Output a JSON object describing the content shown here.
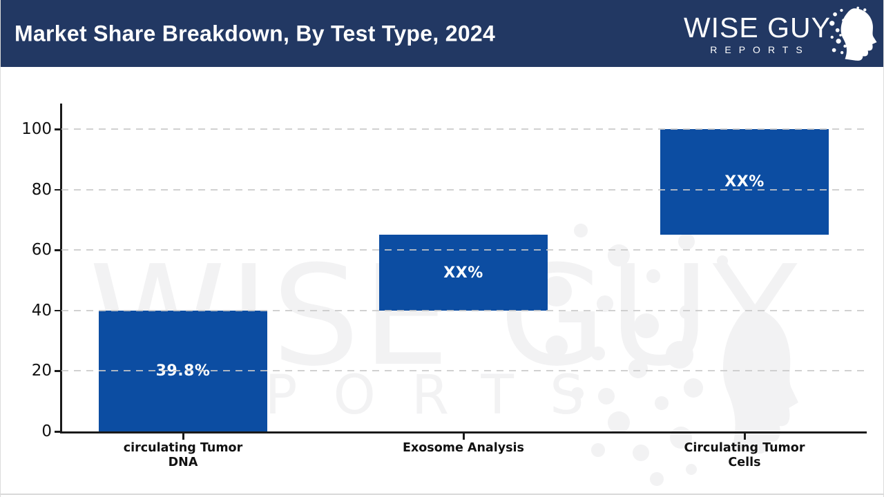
{
  "header": {
    "title": "Market Share Breakdown, By Test Type, 2024",
    "logo": {
      "wordmark": "WISE GUY",
      "subtext": "REPORTS"
    }
  },
  "watermark": {
    "wordmark": "WISE GUY",
    "subtext": "REPORTS"
  },
  "chart_data": {
    "type": "bar",
    "subtype": "floating-waterfall",
    "title": "Market Share Breakdown, By Test Type, 2024",
    "categories": [
      "circulating Tumor DNA",
      "Exosome Analysis",
      "Circulating Tumor Cells"
    ],
    "category_lines": [
      [
        "circulating Tumor",
        "DNA"
      ],
      [
        "Exosome Analysis"
      ],
      [
        "Circulating Tumor",
        "Cells"
      ]
    ],
    "segments": [
      {
        "category": "circulating Tumor DNA",
        "start": 0,
        "end": 40,
        "label": "39.8%"
      },
      {
        "category": "Exosome Analysis",
        "start": 40,
        "end": 65,
        "label": "XX%"
      },
      {
        "category": "Circulating Tumor Cells",
        "start": 65,
        "end": 100,
        "label": "XX%"
      }
    ],
    "y_ticks": [
      0,
      20,
      40,
      60,
      80,
      100
    ],
    "ylim": [
      0,
      105
    ],
    "xlabel": "",
    "ylabel": "",
    "grid": true,
    "legend": false
  },
  "colors": {
    "header_bg": "#223863",
    "bar": "#0c4da2",
    "bar_label": "#ffffff",
    "grid": "#d8d8d8",
    "axis": "#1a1a1a",
    "tick_text": "#111111",
    "watermark": "#f2f2f3"
  }
}
